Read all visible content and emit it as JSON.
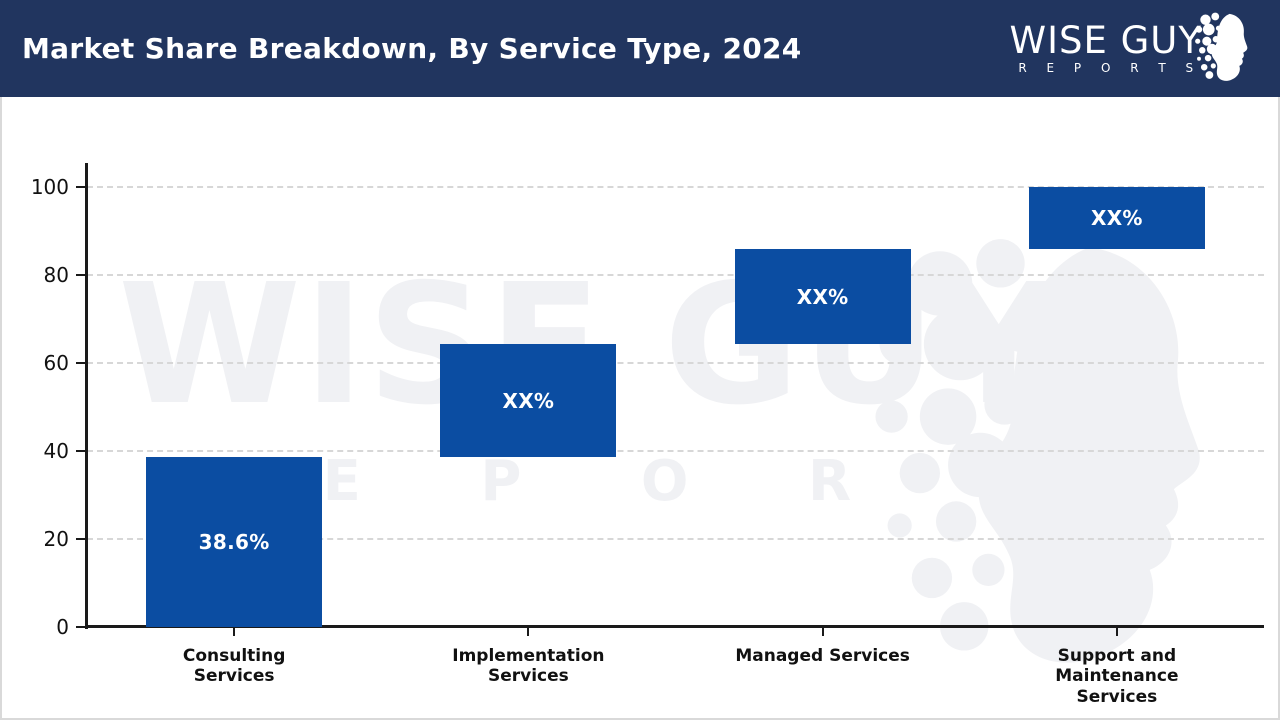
{
  "header": {
    "title": "Market Share Breakdown, By Service Type, 2024",
    "logo": {
      "line1": "WISE GUY",
      "line2": "R E P O R T S"
    }
  },
  "watermark": {
    "line1": "WISE GUY",
    "line2": "R E P O R T S"
  },
  "chart_data": {
    "type": "bar",
    "subtype": "waterfall",
    "title": "Market Share Breakdown, By Service Type, 2024",
    "categories": [
      "Consulting\nServices",
      "Implementation\nServices",
      "Managed Services",
      "Support and\nMaintenance\nServices"
    ],
    "segments": [
      {
        "category": "Consulting Services",
        "start": 0,
        "end": 38.6,
        "label": "38.6%"
      },
      {
        "category": "Implementation Services",
        "start": 38.6,
        "end": 64.3,
        "label": "XX%"
      },
      {
        "category": "Managed Services",
        "start": 64.3,
        "end": 85.8,
        "label": "XX%"
      },
      {
        "category": "Support and Maintenance Services",
        "start": 85.8,
        "end": 100,
        "label": "XX%"
      }
    ],
    "xlabel": "",
    "ylabel": "",
    "yticks": [
      0,
      20,
      40,
      60,
      80,
      100
    ],
    "ylim": [
      0,
      105
    ],
    "grid": "horizontal-dashed",
    "legend": "none",
    "colors": {
      "bar": "#0b4da2",
      "header_bg": "#21355f",
      "grid": "#d7d7d7",
      "axis": "#1a1a1a",
      "value_label": "#ffffff",
      "watermark": "#f0f1f4"
    }
  }
}
